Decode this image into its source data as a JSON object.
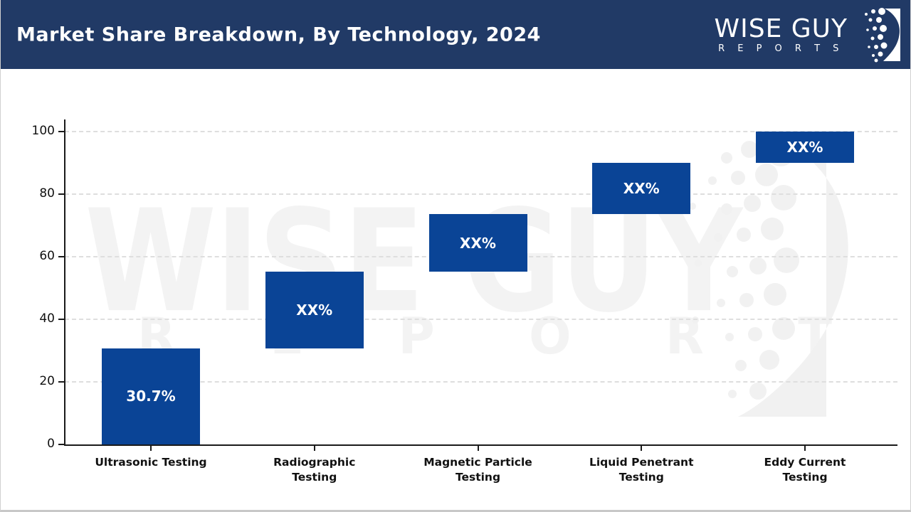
{
  "header": {
    "title": "Market Share Breakdown, By Technology, 2024",
    "bg_color": "#213a66",
    "logo": {
      "line1": "WISE GUY",
      "line2": "R E P O R T S"
    }
  },
  "watermark": {
    "line1": "WISE GUY",
    "line2": "R E P O R T S"
  },
  "chart_data": {
    "type": "bar",
    "subtype": "waterfall",
    "title": "Market Share Breakdown, By Technology, 2024",
    "categories": [
      "Ultrasonic Testing",
      "Radiographic\nTesting",
      "Magnetic Particle\nTesting",
      "Liquid Penetrant\nTesting",
      "Eddy Current\nTesting"
    ],
    "segments": [
      {
        "category": "Ultrasonic Testing",
        "start": 0,
        "end": 30.7,
        "label": "30.7%"
      },
      {
        "category": "Radiographic Testing",
        "start": 30.7,
        "end": 55.2,
        "label": "XX%"
      },
      {
        "category": "Magnetic Particle Testing",
        "start": 55.2,
        "end": 73.6,
        "label": "XX%"
      },
      {
        "category": "Liquid Penetrant Testing",
        "start": 73.6,
        "end": 90.0,
        "label": "XX%"
      },
      {
        "category": "Eddy Current Testing",
        "start": 90.0,
        "end": 100.0,
        "label": "XX%"
      }
    ],
    "yticks": [
      0,
      20,
      40,
      60,
      80,
      100
    ],
    "ylim": [
      0,
      104
    ],
    "xlabel": "",
    "ylabel": "",
    "grid": "horizontal-dashed",
    "legend": null,
    "bar_color": "#0a4496",
    "bar_label_color": "#ffffff"
  }
}
